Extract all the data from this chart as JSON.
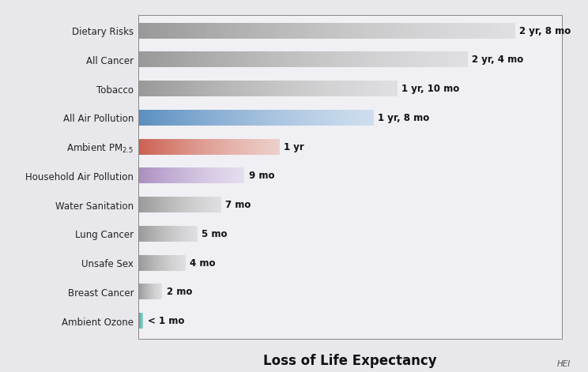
{
  "categories": [
    "Ambient Ozone",
    "Breast Cancer",
    "Unsafe Sex",
    "Lung Cancer",
    "Water Sanitation",
    "Household Air Pollution",
    "Ambient PM$_{2.5}$",
    "All Air Pollution",
    "Tobacco",
    "All Cancer",
    "Dietary Risks"
  ],
  "values_months": [
    0.4,
    2,
    4,
    5,
    7,
    9,
    12,
    20,
    22,
    28,
    32
  ],
  "labels": [
    "< 1 mo",
    "2 mo",
    "4 mo",
    "5 mo",
    "7 mo",
    "9 mo",
    "1 yr",
    "1 yr, 8 mo",
    "1 yr, 10 mo",
    "2 yr, 4 mo",
    "2 yr, 8 mo"
  ],
  "colors_solid": [
    "#3aab96",
    "#999999",
    "#999999",
    "#999999",
    "#999999",
    "#ab8ec0",
    "#cc6050",
    "#5b8fc0",
    "#999999",
    "#999999",
    "#999999"
  ],
  "colors_fade": [
    "#3aab96",
    "#cccccc",
    "#cccccc",
    "#cccccc",
    "#cccccc",
    "#d8c8e8",
    "#e8a898",
    "#a8c8e8",
    "#cccccc",
    "#cccccc",
    "#cccccc"
  ],
  "xlabel": "Loss of Life Expectancy",
  "outer_bg": "#e8e8ec",
  "plot_bg": "#f0f0f4",
  "hei_label": "HEI",
  "xlabel_fontsize": 12,
  "label_fontsize": 8.5,
  "tick_fontsize": 8.5,
  "xlim_max": 36
}
